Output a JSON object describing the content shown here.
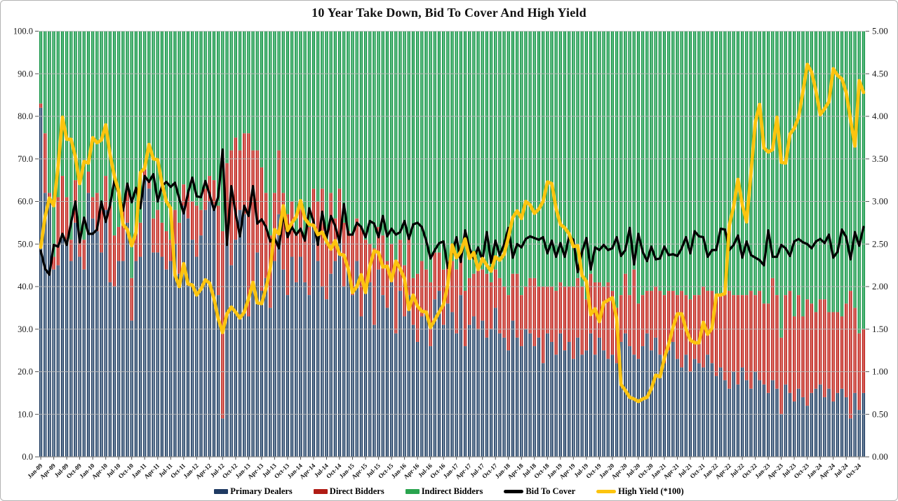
{
  "chart_data": {
    "type": "combo-stacked-bar-line",
    "title": "10 Year Take Down, Bid To Cover And High Yield",
    "x_unit": "monthly auctions",
    "x_first_month": "Jan-09",
    "x_last_month": "Nov-24",
    "n_points": 191,
    "x_tick_labels": [
      "Jan-09",
      "Apr-09",
      "Jul-09",
      "Oct-09",
      "Jan-10",
      "Apr-10",
      "Jul-10",
      "Oct-10",
      "Jan-11",
      "Apr-11",
      "Jul-11",
      "Oct-11",
      "Jan-12",
      "Apr-12",
      "Jul-12",
      "Oct-12",
      "Jan-13",
      "Apr-13",
      "Jul-13",
      "Oct-13",
      "Jan-14",
      "Apr-14",
      "Jul-14",
      "Oct-14",
      "Jan-15",
      "Apr-15",
      "Jul-15",
      "Oct-15",
      "Jan-16",
      "Apr-16",
      "Jul-16",
      "Oct-16",
      "Jan-17",
      "Apr-17",
      "Jul-17",
      "Oct-17",
      "Jan-18",
      "Apr-18",
      "Jul-18",
      "Oct-18",
      "Jan-19",
      "Apr-19",
      "Jul-19",
      "Oct-19",
      "Jan-20",
      "Apr-20",
      "Jul-20",
      "Oct-20",
      "Jan-21",
      "Apr-21",
      "Jul-21",
      "Oct-21",
      "Jan-22",
      "Apr-22",
      "Jul-22",
      "Oct-22",
      "Jan-23",
      "Apr-23",
      "Jul-23",
      "Oct-23",
      "Jan-24",
      "Apr-24",
      "Jul-24",
      "Oct-24"
    ],
    "months_per_tick": 3,
    "left_axis": {
      "min": 0,
      "max": 100,
      "step": 10,
      "labels": [
        "0.0",
        "10.0",
        "20.0",
        "30.0",
        "40.0",
        "50.0",
        "60.0",
        "70.0",
        "80.0",
        "90.0",
        "100.0"
      ]
    },
    "right_axis": {
      "min": 0,
      "max": 5,
      "step": 0.5,
      "labels": [
        "0.00",
        "0.50",
        "1.00",
        "1.50",
        "2.00",
        "2.50",
        "3.00",
        "3.50",
        "4.00",
        "4.50",
        "5.00"
      ]
    },
    "grid": true,
    "legend_position": "bottom-center",
    "series": [
      {
        "name": "Primary Dealers",
        "type": "bar-stack",
        "axis": "left",
        "color": "#1f3a62",
        "values": [
          82,
          62,
          60,
          44,
          45,
          52,
          51,
          46,
          55,
          47,
          44,
          62,
          56,
          53,
          48,
          58,
          41,
          40,
          46,
          46,
          55,
          32,
          46,
          47,
          65,
          63,
          48,
          48,
          47,
          44,
          46,
          50,
          43,
          59,
          56,
          51,
          47,
          52,
          58,
          60,
          59,
          38,
          9,
          54,
          45,
          51,
          58,
          57,
          33,
          40,
          48,
          39,
          42,
          35,
          46,
          57,
          44,
          38,
          47,
          41,
          47,
          41,
          38,
          54,
          46,
          40,
          37,
          43,
          46,
          51,
          40,
          44,
          38,
          46,
          33,
          39,
          41,
          31,
          44,
          38,
          35,
          41,
          29,
          39,
          33,
          38,
          31,
          27,
          33,
          34,
          26,
          37,
          39,
          31,
          36,
          34,
          29,
          38,
          26,
          31,
          33,
          30,
          32,
          28,
          30,
          35,
          29,
          28,
          25,
          32,
          28,
          26,
          30,
          29,
          26,
          28,
          22,
          29,
          27,
          24,
          29,
          25,
          27,
          23,
          28,
          24,
          25,
          29,
          24,
          28,
          25,
          23,
          24,
          22,
          27,
          29,
          26,
          24,
          23,
          26,
          29,
          25,
          28,
          24,
          22,
          25,
          27,
          23,
          21,
          24,
          20,
          23,
          22,
          21,
          24,
          22,
          19,
          21,
          18,
          16,
          20,
          17,
          21,
          18,
          16,
          20,
          18,
          17,
          15,
          18,
          16,
          10,
          17,
          15,
          13,
          16,
          14,
          12,
          15,
          16,
          17,
          14,
          16,
          13,
          15,
          16,
          14,
          9,
          15,
          11,
          15
        ]
      },
      {
        "name": "Direct Bidders",
        "type": "bar-stack",
        "axis": "left",
        "color": "#b01c15",
        "values": [
          1,
          14,
          2,
          3,
          16,
          14,
          10,
          5,
          10,
          6,
          7,
          5,
          5,
          9,
          10,
          8,
          18,
          12,
          8,
          12,
          9,
          10,
          8,
          8,
          3,
          2,
          8,
          10,
          8,
          9,
          5,
          8,
          12,
          5,
          6,
          9,
          12,
          6,
          5,
          6,
          6,
          21,
          44,
          15,
          27,
          24,
          14,
          19,
          43,
          32,
          24,
          29,
          20,
          17,
          16,
          15,
          18,
          19,
          13,
          11,
          13,
          10,
          16,
          9,
          14,
          23,
          13,
          19,
          10,
          12,
          15,
          9,
          14,
          10,
          21,
          12,
          9,
          18,
          10,
          14,
          11,
          9,
          16,
          12,
          12,
          14,
          11,
          16,
          13,
          10,
          15,
          11,
          9,
          13,
          10,
          12,
          15,
          9,
          13,
          11,
          10,
          14,
          12,
          15,
          11,
          9,
          13,
          12,
          13,
          11,
          15,
          12,
          10,
          13,
          16,
          12,
          18,
          11,
          13,
          15,
          12,
          15,
          13,
          17,
          14,
          16,
          12,
          14,
          17,
          13,
          15,
          18,
          15,
          13,
          11,
          14,
          12,
          20,
          13,
          12,
          10,
          14,
          12,
          15,
          16,
          14,
          12,
          15,
          18,
          14,
          17,
          15,
          16,
          19,
          15,
          17,
          19,
          17,
          20,
          23,
          18,
          21,
          17,
          20,
          23,
          18,
          21,
          19,
          21,
          24,
          22,
          18,
          21,
          24,
          20,
          22,
          19,
          25,
          21,
          18,
          20,
          23,
          18,
          21,
          19,
          17,
          22,
          30,
          20,
          18,
          15
        ]
      },
      {
        "name": "Indirect Bidders",
        "type": "bar-stack",
        "axis": "left",
        "color": "#2aa44e",
        "derived": "100 minus Primary Dealers minus Direct Bidders (stack always totals 100)"
      },
      {
        "name": "Bid To Cover",
        "type": "line",
        "axis": "right",
        "color": "#000000",
        "values": [
          2.42,
          2.21,
          2.14,
          2.49,
          2.47,
          2.62,
          2.49,
          2.75,
          3.0,
          2.52,
          2.81,
          2.62,
          2.62,
          2.67,
          3.0,
          2.76,
          2.96,
          3.24,
          3.09,
          2.89,
          3.21,
          2.99,
          3.16,
          2.92,
          3.3,
          3.23,
          3.32,
          3.0,
          3.18,
          3.23,
          3.17,
          3.22,
          3.03,
          2.86,
          3.1,
          3.28,
          3.06,
          3.05,
          3.24,
          3.08,
          2.9,
          3.06,
          3.61,
          2.49,
          3.18,
          2.86,
          2.59,
          2.95,
          2.83,
          3.18,
          2.74,
          2.79,
          2.7,
          2.53,
          2.57,
          2.45,
          2.86,
          2.58,
          2.7,
          2.61,
          2.68,
          2.54,
          2.92,
          2.76,
          2.49,
          2.88,
          2.57,
          2.83,
          2.71,
          2.52,
          2.97,
          2.61,
          2.61,
          2.75,
          2.7,
          2.58,
          2.77,
          2.74,
          2.58,
          2.83,
          2.59,
          2.68,
          2.61,
          2.64,
          2.77,
          2.56,
          2.73,
          2.75,
          2.7,
          2.54,
          2.33,
          2.43,
          2.51,
          2.53,
          2.22,
          2.39,
          2.58,
          2.29,
          2.66,
          2.45,
          2.33,
          2.46,
          2.31,
          2.64,
          2.28,
          2.54,
          2.37,
          2.5,
          2.69,
          2.34,
          2.5,
          2.46,
          2.56,
          2.59,
          2.57,
          2.55,
          2.58,
          2.39,
          2.54,
          2.35,
          2.51,
          2.35,
          2.59,
          2.55,
          2.17,
          2.41,
          2.57,
          2.2,
          2.46,
          2.43,
          2.49,
          2.43,
          2.45,
          2.58,
          2.36,
          2.43,
          2.69,
          2.26,
          2.62,
          2.41,
          2.3,
          2.47,
          2.32,
          2.33,
          2.47,
          2.37,
          2.38,
          2.36,
          2.45,
          2.58,
          2.39,
          2.65,
          2.59,
          2.58,
          2.35,
          2.43,
          2.43,
          2.68,
          2.67,
          2.43,
          2.49,
          2.6,
          2.34,
          2.53,
          2.37,
          2.34,
          2.31,
          2.25,
          2.66,
          2.35,
          2.35,
          2.49,
          2.45,
          2.36,
          2.53,
          2.56,
          2.52,
          2.5,
          2.45,
          2.53,
          2.56,
          2.51,
          2.61,
          2.34,
          2.41,
          2.67,
          2.58,
          2.32,
          2.64,
          2.48,
          2.7
        ]
      },
      {
        "name": "High Yield (*100)",
        "type": "line",
        "axis": "right",
        "color": "#fcc40f",
        "values": [
          2.46,
          2.82,
          3.04,
          2.95,
          3.41,
          3.99,
          3.73,
          3.73,
          3.52,
          3.21,
          3.47,
          3.45,
          3.75,
          3.69,
          3.72,
          3.9,
          3.55,
          3.3,
          3.12,
          2.73,
          2.67,
          2.48,
          2.64,
          3.34,
          3.39,
          3.67,
          3.5,
          3.49,
          3.21,
          3.0,
          2.92,
          2.14,
          2.0,
          2.27,
          2.03,
          2.02,
          1.9,
          1.97,
          2.08,
          2.04,
          1.86,
          1.62,
          1.46,
          1.68,
          1.76,
          1.7,
          1.63,
          1.7,
          1.86,
          2.05,
          1.81,
          1.8,
          1.98,
          2.21,
          2.67,
          2.62,
          2.95,
          2.66,
          2.75,
          2.82,
          3.01,
          2.8,
          2.73,
          2.72,
          2.61,
          2.64,
          2.53,
          2.44,
          2.54,
          2.38,
          2.37,
          2.21,
          1.93,
          2.0,
          2.14,
          1.93,
          2.24,
          2.42,
          2.4,
          2.23,
          2.24,
          2.07,
          2.3,
          2.21,
          2.09,
          1.73,
          1.9,
          1.77,
          1.71,
          1.7,
          1.52,
          1.61,
          1.7,
          1.79,
          2.02,
          2.49,
          2.34,
          2.41,
          2.56,
          2.33,
          2.4,
          2.2,
          2.33,
          2.25,
          2.18,
          2.35,
          2.31,
          2.38,
          2.58,
          2.81,
          2.89,
          2.8,
          3.0,
          2.96,
          2.86,
          2.91,
          3.0,
          3.23,
          3.21,
          2.92,
          2.73,
          2.69,
          2.62,
          2.47,
          2.48,
          2.13,
          2.06,
          1.67,
          1.74,
          1.59,
          1.81,
          1.84,
          1.87,
          1.62,
          0.85,
          0.78,
          0.7,
          0.68,
          0.65,
          0.68,
          0.7,
          0.8,
          0.96,
          0.94,
          1.16,
          1.32,
          1.52,
          1.68,
          1.68,
          1.5,
          1.37,
          1.34,
          1.34,
          1.58,
          1.44,
          1.51,
          1.9,
          1.9,
          1.92,
          2.72,
          2.94,
          3.26,
          2.96,
          2.76,
          3.33,
          3.93,
          4.14,
          3.63,
          3.58,
          3.61,
          3.99,
          3.46,
          3.45,
          3.79,
          3.86,
          3.99,
          4.29,
          4.61,
          4.52,
          4.3,
          4.02,
          4.09,
          4.17,
          4.56,
          4.48,
          4.44,
          4.28,
          3.96,
          3.65,
          4.42,
          4.28
        ]
      }
    ],
    "legend": [
      {
        "label": "Primary Dealers",
        "color": "#1f3a62",
        "marker": "rect"
      },
      {
        "label": "Direct Bidders",
        "color": "#b01c15",
        "marker": "rect"
      },
      {
        "label": "Indirect Bidders",
        "color": "#2aa44e",
        "marker": "rect"
      },
      {
        "label": "Bid To Cover",
        "color": "#000000",
        "marker": "line"
      },
      {
        "label": "High Yield (*100)",
        "color": "#fcc40f",
        "marker": "line"
      }
    ],
    "colors": {
      "background": "#ffffff",
      "gridline": "#bdbdbd",
      "axis_text": "#1a1a1a",
      "bar_navy_dark": "#1d3a5f",
      "bar_navy_light": "#a9bccb",
      "bar_red_dark": "#bb221b",
      "bar_red_light": "#ef9b94",
      "bar_green_dark": "#169447",
      "bar_green_light": "#8ed8ab"
    }
  }
}
